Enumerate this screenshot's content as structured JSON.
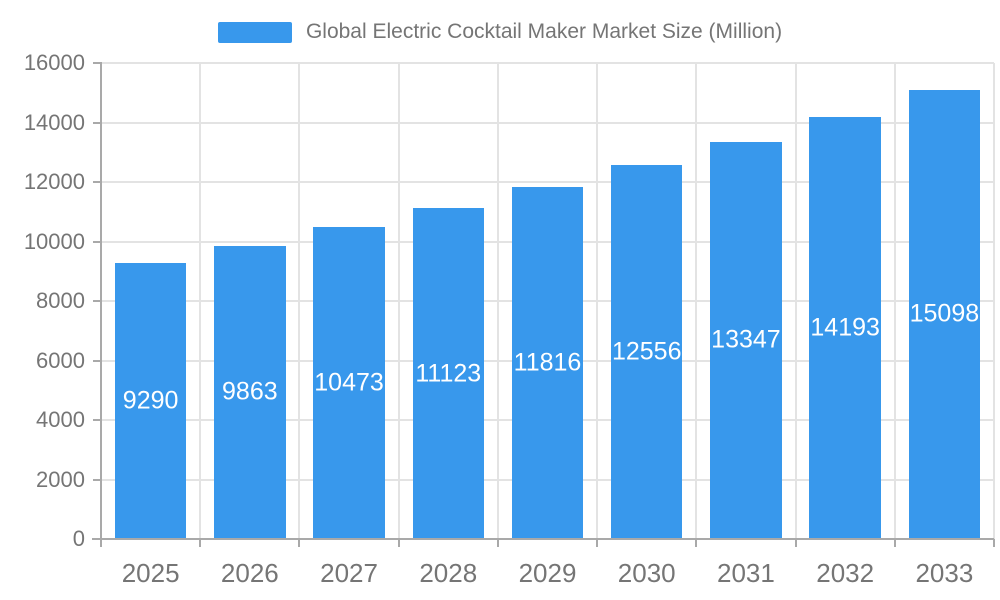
{
  "legend": {
    "label": "Global Electric Cocktail Maker Market Size (Million)"
  },
  "chart_data": {
    "type": "bar",
    "title": "Global Electric Cocktail Maker Market Size (Million)",
    "categories": [
      "2025",
      "2026",
      "2027",
      "2028",
      "2029",
      "2030",
      "2031",
      "2032",
      "2033"
    ],
    "values": [
      9290,
      9863,
      10473,
      11123,
      11816,
      12556,
      13347,
      14193,
      15098
    ],
    "xlabel": "",
    "ylabel": "",
    "ylim": [
      0,
      16000
    ],
    "yticks": [
      0,
      2000,
      4000,
      6000,
      8000,
      10000,
      12000,
      14000,
      16000
    ],
    "ytick_labels": [
      "0",
      "2000",
      "4000",
      "6000",
      "8000",
      "10000",
      "12000",
      "14000",
      "16000"
    ],
    "grid": true,
    "legend_position": "top-center",
    "bar_color": "#3898EC",
    "value_label_color": "#FFFFFF",
    "axis_text_color": "#757575",
    "grid_color": "#E3E3E3",
    "axis_line_color": "#A9A9A9",
    "background": "#FFFFFF"
  }
}
